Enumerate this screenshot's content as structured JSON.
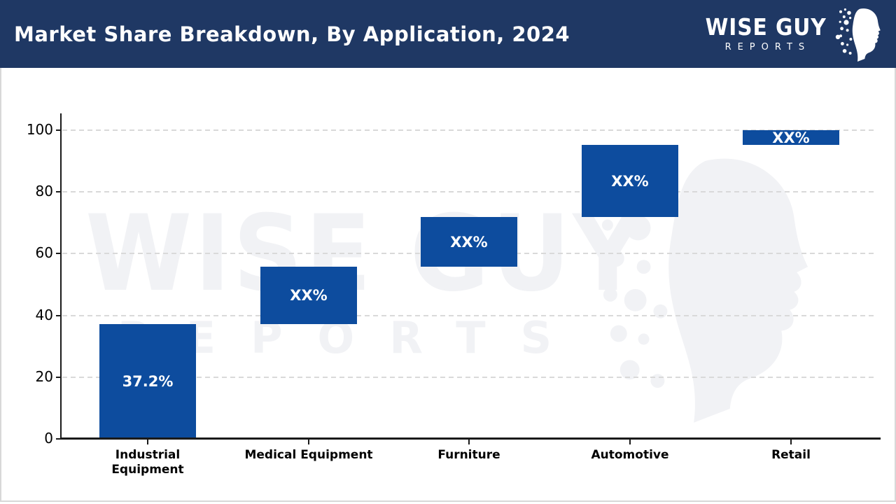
{
  "header": {
    "title": "Market Share Breakdown, By Application, 2024",
    "logo": {
      "line1": "WISE GUY",
      "line2": "REPORTS"
    }
  },
  "watermark": {
    "line1": "WISE GUY",
    "line2": "REPORTS"
  },
  "colors": {
    "header_bg": "#1f3864",
    "bar_blue": "#0d4c9e",
    "grid_gray": "#d9d9d9",
    "axis_black": "#1a1a1a",
    "watermark_gray": "#f1f2f5"
  },
  "chart_data": {
    "type": "bar",
    "subtype": "waterfall",
    "title": "Market Share Breakdown, By Application, 2024",
    "categories": [
      "Industrial Equipment",
      "Medical Equipment",
      "Furniture",
      "Automotive",
      "Retail"
    ],
    "segments": [
      {
        "category": "Industrial Equipment",
        "start": 0,
        "end": 37.2,
        "label": "37.2%"
      },
      {
        "category": "Medical Equipment",
        "start": 37.2,
        "end": 55.8,
        "label": "XX%"
      },
      {
        "category": "Furniture",
        "start": 55.8,
        "end": 71.8,
        "label": "XX%"
      },
      {
        "category": "Automotive",
        "start": 71.8,
        "end": 95.2,
        "label": "XX%"
      },
      {
        "category": "Retail",
        "start": 95.2,
        "end": 100,
        "label": "XX%"
      }
    ],
    "xlabel": "",
    "ylabel": "",
    "ylim": [
      0,
      100
    ],
    "yticks": [
      0,
      20,
      40,
      60,
      80,
      100
    ],
    "grid": "horizontal dashed",
    "legend": "none",
    "bar_color": "#0d4c9e",
    "bar_label_color": "#ffffff"
  }
}
